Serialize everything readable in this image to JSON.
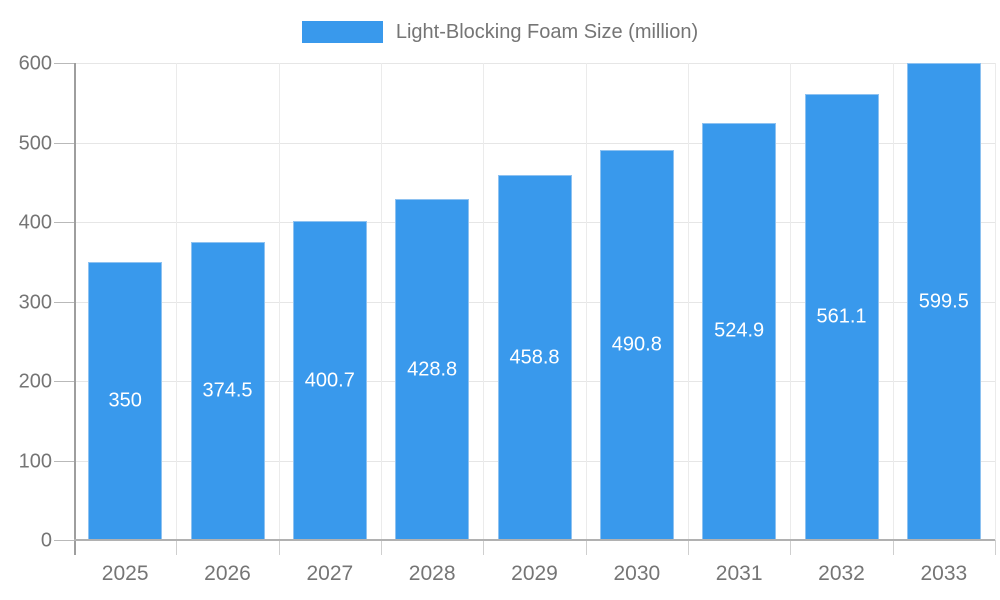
{
  "legend": {
    "label": "Light-Blocking Foam Size (million)"
  },
  "colors": {
    "bar": "#3999ec",
    "bar_edge": "#8ec2f1",
    "axis_text": "#757575",
    "value_label_text": "#ffffff",
    "hgrid": "#e6e6e6",
    "vgrid": "#ebebeb",
    "axis_line": "#9e9e9e",
    "baseline": "#b1b1b1"
  },
  "chart_data": {
    "type": "bar",
    "title": "",
    "xlabel": "",
    "ylabel": "",
    "categories": [
      "2025",
      "2026",
      "2027",
      "2028",
      "2029",
      "2030",
      "2031",
      "2032",
      "2033"
    ],
    "series": [
      {
        "name": "Light-Blocking Foam Size (million)",
        "values": [
          350,
          374.5,
          400.7,
          428.8,
          458.8,
          490.8,
          524.9,
          561.1,
          599.5
        ]
      }
    ],
    "value_labels": [
      "350",
      "374.5",
      "400.7",
      "428.8",
      "458.8",
      "490.8",
      "524.9",
      "561.1",
      "599.5"
    ],
    "ylim": [
      0,
      600
    ],
    "yticks": [
      0,
      100,
      200,
      300,
      400,
      500,
      600
    ],
    "grid": true,
    "legend_position": "top"
  }
}
